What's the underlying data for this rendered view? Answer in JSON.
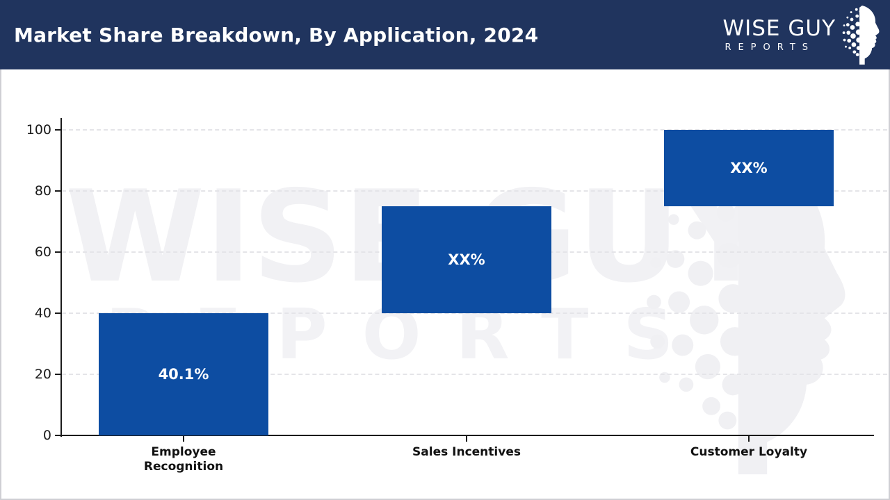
{
  "header": {
    "title": "Market Share Breakdown, By Application, 2024",
    "logo": {
      "name": "WISE GUY",
      "subtext": "REPORTS"
    }
  },
  "watermark": {
    "line1": "WISE GUY",
    "line2": "REPORTS"
  },
  "chart_data": {
    "type": "bar",
    "subtype": "waterfall-stepped-segments",
    "title": "Market Share Breakdown, By Application, 2024",
    "categories": [
      "Employee Recognition",
      "Sales Incentives",
      "Customer Loyalty"
    ],
    "series": [
      {
        "name": "Market Share (%)",
        "segments": [
          {
            "category": "Employee Recognition",
            "start": 0,
            "end": 40.1,
            "label": "40.1%"
          },
          {
            "category": "Sales Incentives",
            "start": 40,
            "end": 75,
            "label": "XX%"
          },
          {
            "category": "Customer Loyalty",
            "start": 75,
            "end": 100,
            "label": "XX%"
          }
        ]
      }
    ],
    "xlabel": "",
    "ylabel": "",
    "ylim": [
      0,
      100
    ],
    "yticks": [
      0,
      20,
      40,
      60,
      80,
      100
    ],
    "grid": "horizontal dashed",
    "legend": "none",
    "bar_color": "#0d4da2",
    "bar_label_color": "#ffffff",
    "axis_color": "#1a1a1a",
    "gridline_color": "#e4e4e8"
  },
  "colors": {
    "header_bg": "#20345e",
    "content_bg": "#ffffff",
    "border": "#cfcfd4",
    "watermark": "#f1f1f4",
    "title_text": "#ffffff"
  }
}
